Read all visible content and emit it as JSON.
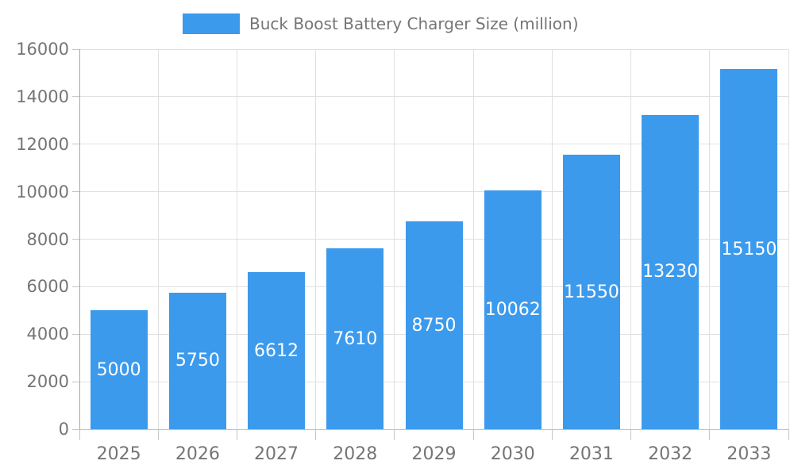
{
  "chart_data": {
    "type": "bar",
    "title": "",
    "legend": "Buck Boost Battery Charger Size (million)",
    "categories": [
      "2025",
      "2026",
      "2027",
      "2028",
      "2029",
      "2030",
      "2031",
      "2032",
      "2033"
    ],
    "series": [
      {
        "name": "Buck Boost Battery Charger Size (million)",
        "values": [
          5000,
          5750,
          6612,
          7610,
          8750,
          10062,
          11550,
          13230,
          15150
        ]
      }
    ],
    "xlabel": "",
    "ylabel": "",
    "ylim": [
      0,
      16000
    ],
    "ytick_step": 2000,
    "ytick_labels": [
      "0",
      "2000",
      "4000",
      "6000",
      "8000",
      "10000",
      "12000",
      "14000",
      "16000"
    ],
    "grid": "on",
    "legend_position": "top-center",
    "bar_color": "#3C9AED",
    "bar_label_color": "#FFFFFF",
    "axis_text_color": "#757575",
    "gridline_color": "#E0E0E0"
  }
}
